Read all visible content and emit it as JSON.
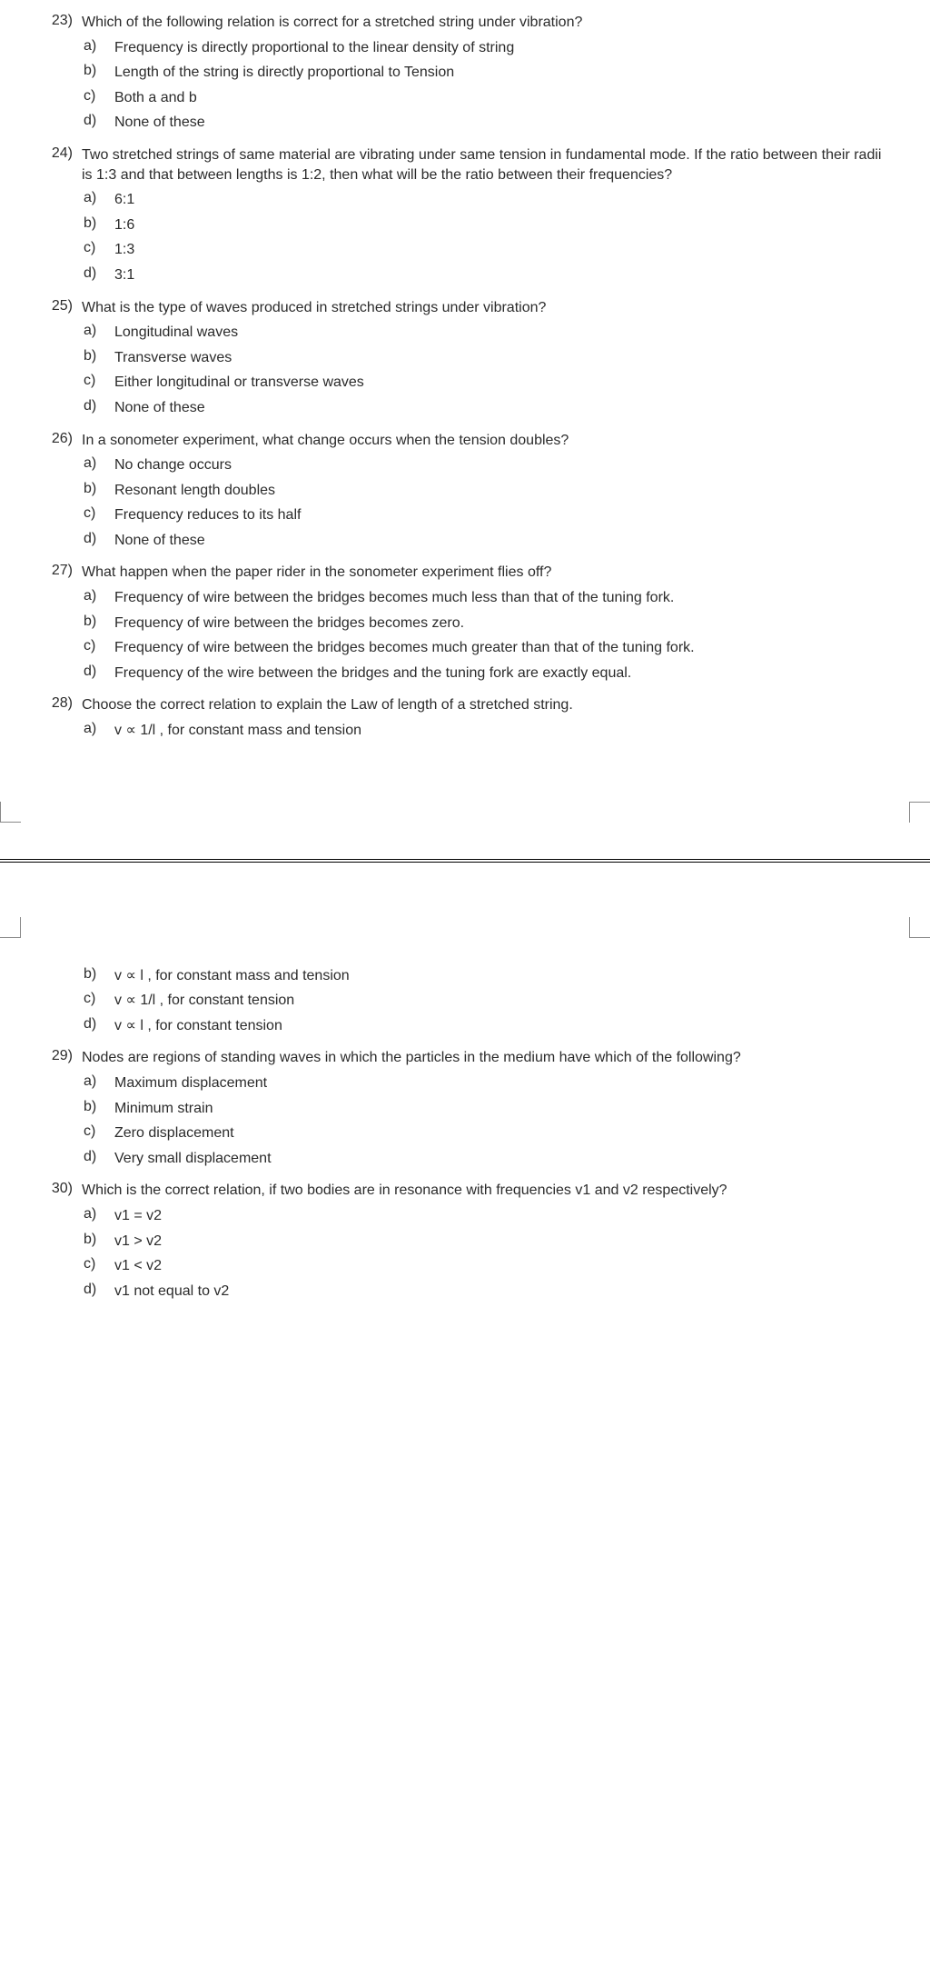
{
  "questions": [
    {
      "number": "23)",
      "text": "Which of the following relation is correct for a stretched string under vibration?",
      "options": [
        {
          "label": "a)",
          "text": "Frequency is directly proportional to the linear density of string"
        },
        {
          "label": "b)",
          "text": "Length of the string is directly proportional to Tension"
        },
        {
          "label": "c)",
          "text": "Both a and b"
        },
        {
          "label": "d)",
          "text": "None of these"
        }
      ]
    },
    {
      "number": "24)",
      "text": "Two stretched strings of same material are vibrating under same tension in fundamental mode. If the ratio between their radii is 1:3 and that between lengths is 1:2, then what will be the ratio between their frequencies?",
      "options": [
        {
          "label": "a)",
          "text": "6:1"
        },
        {
          "label": "b)",
          "text": "1:6"
        },
        {
          "label": "c)",
          "text": "1:3"
        },
        {
          "label": "d)",
          "text": "3:1"
        }
      ]
    },
    {
      "number": "25)",
      "text": "What is the type of waves produced in stretched strings under vibration?",
      "options": [
        {
          "label": "a)",
          "text": "Longitudinal waves"
        },
        {
          "label": "b)",
          "text": "Transverse waves"
        },
        {
          "label": "c)",
          "text": "Either longitudinal or transverse waves"
        },
        {
          "label": "d)",
          "text": "None of these"
        }
      ]
    },
    {
      "number": "26)",
      "text": "In a sonometer experiment, what change occurs when the tension doubles?",
      "options": [
        {
          "label": "a)",
          "text": "No change occurs"
        },
        {
          "label": "b)",
          "text": "Resonant length doubles"
        },
        {
          "label": "c)",
          "text": "Frequency reduces to its half"
        },
        {
          "label": "d)",
          "text": "None of these"
        }
      ]
    },
    {
      "number": "27)",
      "text": "What happen when the paper rider in the sonometer experiment flies off?",
      "options": [
        {
          "label": "a)",
          "text": "Frequency of wire between the bridges becomes much less than that of the tuning fork."
        },
        {
          "label": "b)",
          "text": "Frequency of wire between the bridges becomes zero."
        },
        {
          "label": "c)",
          "text": "Frequency of wire between the bridges becomes much greater than that of the tuning fork."
        },
        {
          "label": "d)",
          "text": "Frequency of the wire between the bridges and the tuning fork are exactly equal."
        }
      ]
    },
    {
      "number": "28)",
      "text": "Choose the correct relation to explain the Law of length of a stretched string.",
      "options_part1": [
        {
          "label": "a)",
          "text": "v ∝ 1/l , for constant mass and tension"
        }
      ],
      "options_part2": [
        {
          "label": "b)",
          "text": "v ∝ l , for constant mass and tension"
        },
        {
          "label": "c)",
          "text": "v ∝ 1/l , for constant tension"
        },
        {
          "label": "d)",
          "text": "v ∝ l , for constant tension"
        }
      ]
    },
    {
      "number": "29)",
      "text": "Nodes are regions of standing waves in which the particles in the medium have which of the following?",
      "options": [
        {
          "label": "a)",
          "text": "Maximum displacement"
        },
        {
          "label": "b)",
          "text": "Minimum strain"
        },
        {
          "label": "c)",
          "text": "Zero displacement"
        },
        {
          "label": "d)",
          "text": "Very small displacement"
        }
      ]
    },
    {
      "number": "30)",
      "text": "Which is the correct relation, if two bodies are in resonance with frequencies v1 and v2 respectively?",
      "options": [
        {
          "label": "a)",
          "text": "v1 = v2"
        },
        {
          "label": "b)",
          "text": "v1 > v2"
        },
        {
          "label": "c)",
          "text": "v1 < v2"
        },
        {
          "label": "d)",
          "text": "v1 not equal to v2"
        }
      ]
    }
  ]
}
